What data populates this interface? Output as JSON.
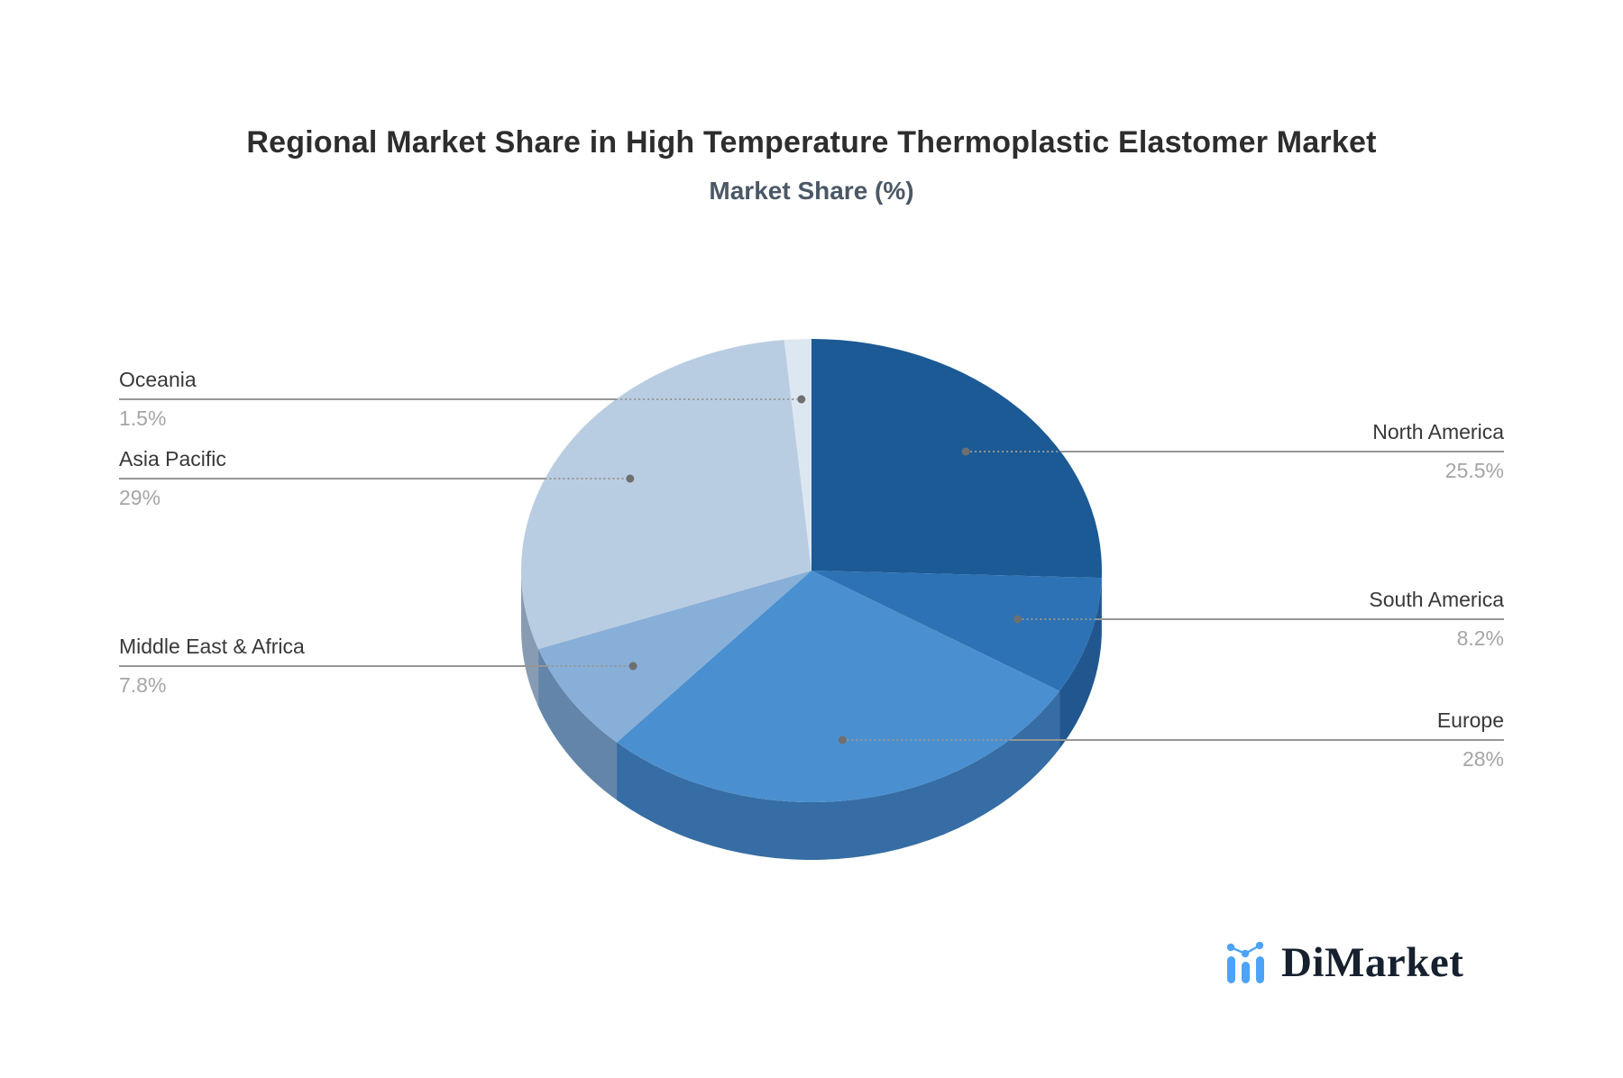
{
  "chart_data": {
    "type": "pie",
    "three_d": true,
    "title": "Regional Market Share in High Temperature Thermoplastic Elastomer Market",
    "subtitle": "Market Share (%)",
    "unit": "%",
    "start_angle_deg": 0,
    "direction": "clockwise",
    "legend_position": "none",
    "background_color": "#ffffff",
    "leader_line_color": "#969696",
    "leader_dot_color": "#6f6f6f",
    "label_color": "#383838",
    "value_color": "#a5a5a5",
    "slices": [
      {
        "label": "North America",
        "value": 25.5,
        "display": "25.5%",
        "color": "#1b5a94",
        "label_side": "right"
      },
      {
        "label": "South America",
        "value": 8.2,
        "display": "8.2%",
        "color": "#2d72b4",
        "label_side": "right"
      },
      {
        "label": "Europe",
        "value": 28,
        "display": "28%",
        "color": "#4a90d0",
        "label_side": "right"
      },
      {
        "label": "Middle East & Africa",
        "value": 7.8,
        "display": "7.8%",
        "color": "#88afd7",
        "label_side": "left"
      },
      {
        "label": "Asia Pacific",
        "value": 29,
        "display": "29%",
        "color": "#b9cde2",
        "label_side": "left"
      },
      {
        "label": "Oceania",
        "value": 1.5,
        "display": "1.5%",
        "color": "#dde7f1",
        "label_side": "left"
      }
    ]
  },
  "logo": {
    "text": "DiMarket",
    "accent_color": "#4da3f7",
    "text_color": "#16202f"
  }
}
